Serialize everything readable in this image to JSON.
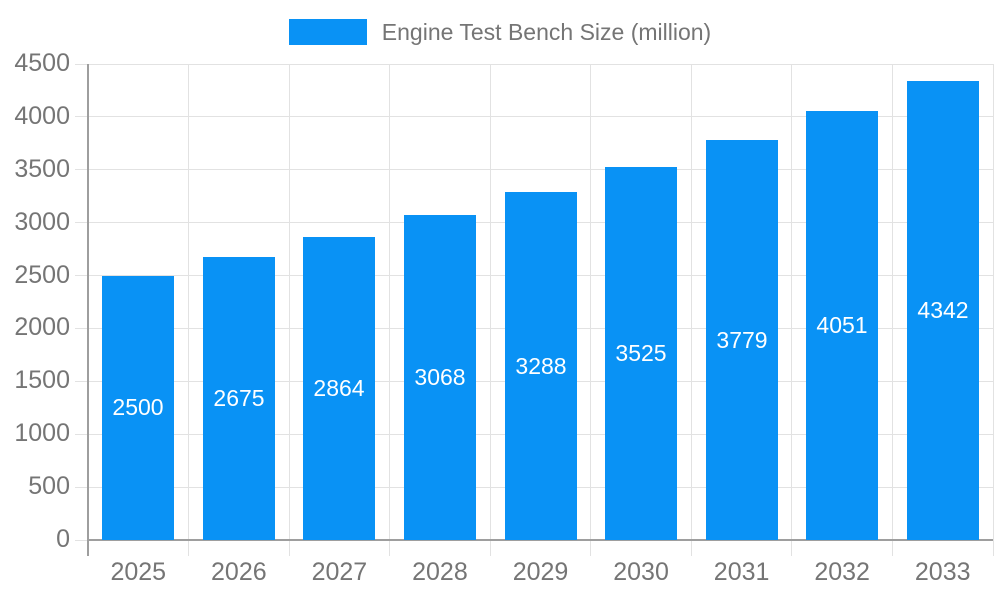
{
  "chart_data": {
    "type": "bar",
    "title": "Engine Test Bench Size (million)",
    "categories": [
      "2025",
      "2026",
      "2027",
      "2028",
      "2029",
      "2030",
      "2031",
      "2032",
      "2033"
    ],
    "values": [
      2500,
      2675,
      2864,
      3068,
      3288,
      3525,
      3779,
      4051,
      4342
    ],
    "xlabel": "",
    "ylabel": "",
    "ylim": [
      0,
      4500
    ],
    "ytick_step": 500,
    "ytick_labels": [
      "0",
      "500",
      "1000",
      "1500",
      "2000",
      "2500",
      "3000",
      "3500",
      "4000",
      "4500"
    ],
    "grid": true,
    "legend_position": "top",
    "value_labels": "inside-center",
    "colors": {
      "bar": "#0992f5",
      "grid": "#e2e2e2",
      "axis": "#9e9e9e",
      "text": "#757575",
      "value_label_text": "#ffffff",
      "background": "#ffffff"
    }
  }
}
